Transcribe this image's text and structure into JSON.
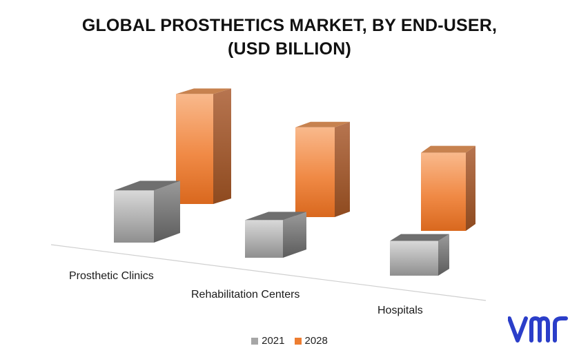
{
  "chart_data": {
    "type": "bar",
    "title_lines": [
      "GLOBAL PROSTHETICS MARKET, BY END-USER,",
      "(USD BILLION)"
    ],
    "categories": [
      "Prosthetic Clinics",
      "Rehabilitation Centers",
      "Hospitals"
    ],
    "series": [
      {
        "name": "2021",
        "values": [
          0.9,
          0.65,
          0.6
        ],
        "color": "#a6a6a6"
      },
      {
        "name": "2028",
        "values": [
          1.9,
          1.55,
          1.35
        ],
        "color": "#ed7d31"
      }
    ],
    "legend_position": "bottom",
    "grid": false
  },
  "logo": {
    "icon": "vmr-logo-icon",
    "color": "#2b3ec9"
  }
}
